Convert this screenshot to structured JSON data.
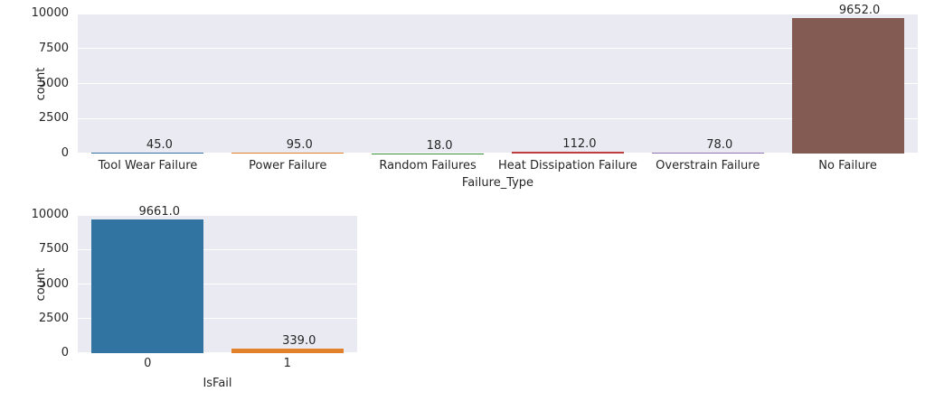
{
  "figure": {
    "background": "#ffffff",
    "plot_background": "#eaeaf2",
    "grid_color": "#ffffff",
    "text_color": "#262626"
  },
  "chart_data": [
    {
      "type": "bar",
      "title": "",
      "xlabel": "Failure_Type",
      "ylabel": "count",
      "categories": [
        "Tool Wear Failure",
        "Power Failure",
        "Random Failures",
        "Heat Dissipation Failure",
        "Overstrain Failure",
        "No Failure"
      ],
      "values": [
        45,
        95,
        18,
        112,
        78,
        9652
      ],
      "bar_labels": [
        "45.0",
        "95.0",
        "18.0",
        "112.0",
        "78.0",
        "9652.0"
      ],
      "bar_colors": [
        "#3274a1",
        "#e1812c",
        "#3a923a",
        "#c03d3e",
        "#9372b2",
        "#845b53"
      ],
      "ylim": [
        0,
        10000
      ],
      "yticks": [
        "0",
        "2500",
        "5000",
        "7500",
        "10000"
      ],
      "grid": true,
      "legend": false,
      "bar_width_fraction": 0.8
    },
    {
      "type": "bar",
      "title": "",
      "xlabel": "IsFail",
      "ylabel": "count",
      "categories": [
        "0",
        "1"
      ],
      "values": [
        9661,
        339
      ],
      "bar_labels": [
        "9661.0",
        "339.0"
      ],
      "bar_colors": [
        "#3274a1",
        "#e1812c"
      ],
      "ylim": [
        0,
        10000
      ],
      "yticks": [
        "0",
        "2500",
        "5000",
        "7500",
        "10000"
      ],
      "grid": true,
      "legend": false,
      "bar_width_fraction": 0.8
    }
  ]
}
